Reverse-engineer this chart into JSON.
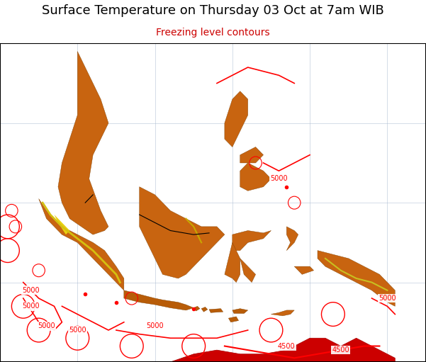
{
  "title": "Surface Temperature on Thursday 03 Oct at 7am WIB",
  "subtitle": "Freezing level contours",
  "title_fontsize": 13,
  "subtitle_fontsize": 10,
  "bg_color": "#ffffff",
  "ocean_color": "#c8d8f0",
  "header_bg": "#f0f0f0",
  "figsize": [
    6.01,
    5.11
  ],
  "dpi": 100
}
